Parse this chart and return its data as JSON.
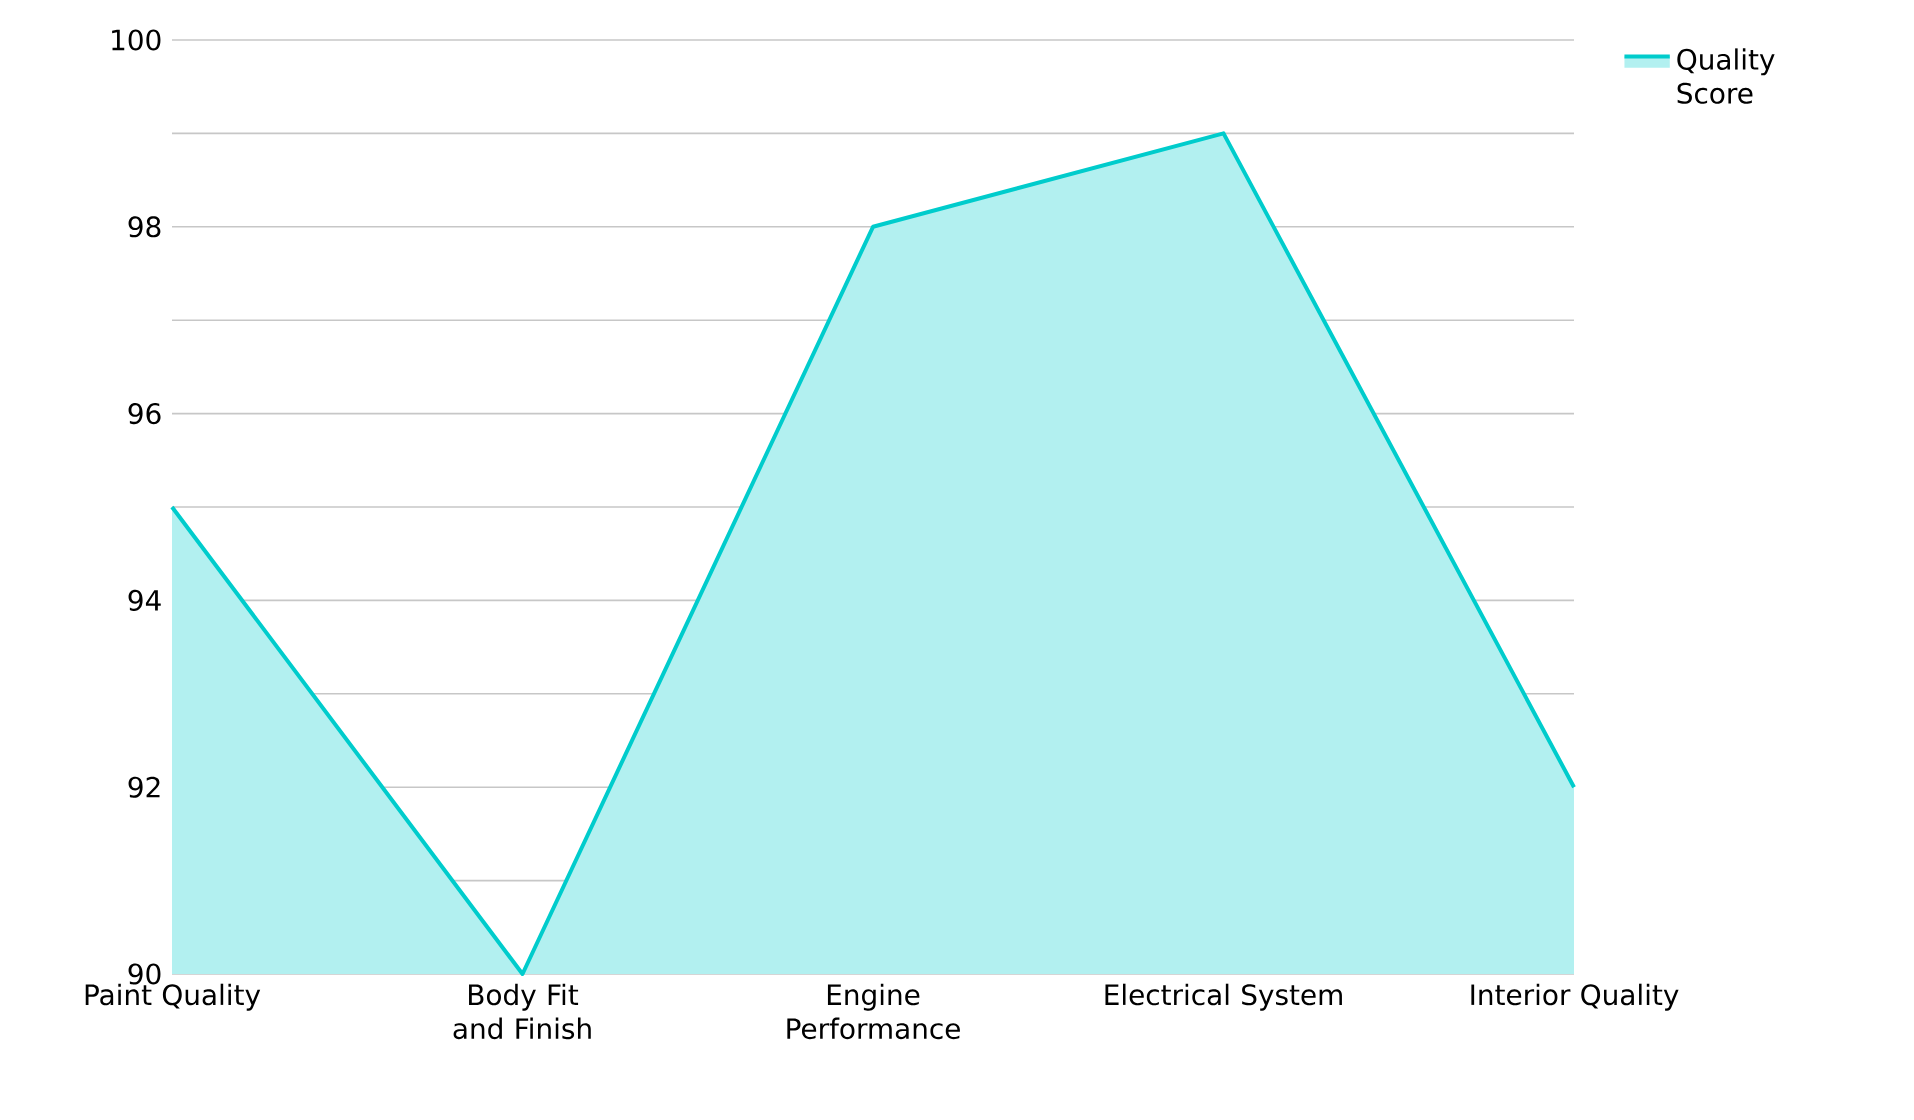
{
  "chart_data": {
    "type": "area",
    "categories": [
      "Paint Quality",
      "Body Fit and Finish",
      "Engine Performance",
      "Electrical System",
      "Interior Quality"
    ],
    "series": [
      {
        "name": "Quality Score",
        "color": "#00cccc",
        "values": [
          95,
          90,
          98,
          99,
          92
        ]
      }
    ],
    "ylim": [
      90,
      100
    ],
    "yticks": [
      90,
      {
        "value": 91,
        "label": null
      },
      92,
      {
        "value": 93,
        "label": null
      },
      94,
      {
        "value": 95,
        "label": null
      },
      96,
      {
        "value": 97,
        "label": null
      },
      98,
      {
        "value": 99,
        "label": null
      },
      100
    ],
    "grid": "y",
    "legend": "top right"
  }
}
